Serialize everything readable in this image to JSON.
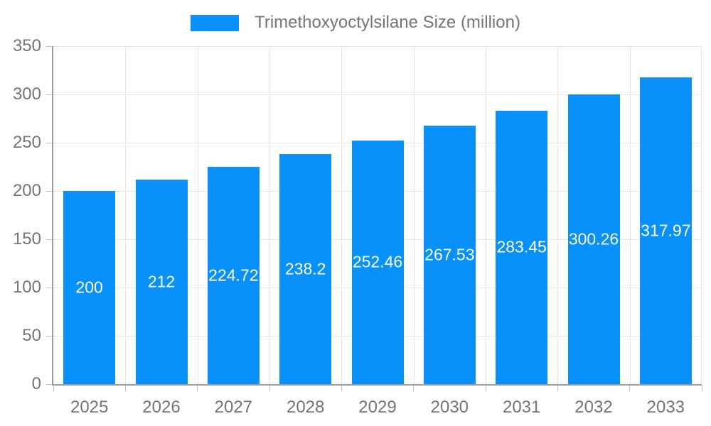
{
  "legend": {
    "label": "Trimethoxyoctylsilane Size (million)"
  },
  "chart_data": {
    "type": "bar",
    "title": "Trimethoxyoctylsilane Size (million)",
    "xlabel": "",
    "ylabel": "",
    "categories": [
      "2025",
      "2026",
      "2027",
      "2028",
      "2029",
      "2030",
      "2031",
      "2032",
      "2033"
    ],
    "values": [
      200,
      212,
      224.72,
      238.2,
      252.46,
      267.53,
      283.45,
      300.26,
      317.97
    ],
    "value_labels": [
      "200",
      "212",
      "224.72",
      "238.2",
      "252.46",
      "267.53",
      "283.45",
      "300.26",
      "317.97"
    ],
    "ylim": [
      0,
      350
    ],
    "ytick_interval": 50,
    "ytick_labels": [
      "0",
      "50",
      "100",
      "150",
      "200",
      "250",
      "300",
      "350"
    ],
    "grid": true,
    "legend_position": "top",
    "bar_label_position": "middle",
    "colors": {
      "bar": "#0891fa",
      "grid": "#e6e6e6",
      "axis": "#9b9b9b",
      "tick": "#c0c0c0",
      "axis_text": "#757575",
      "bar_label_text": "#ffffff",
      "background": "#ffffff"
    }
  }
}
